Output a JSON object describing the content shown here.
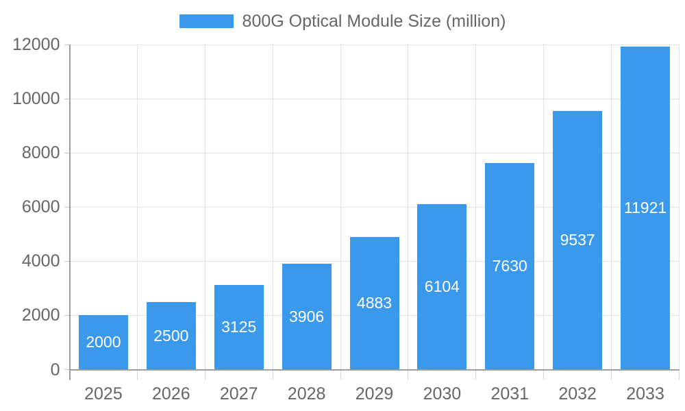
{
  "legend": {
    "label": "800G Optical Module Size (million)"
  },
  "chart_data": {
    "type": "bar",
    "title": "",
    "xlabel": "",
    "ylabel": "",
    "categories": [
      "2025",
      "2026",
      "2027",
      "2028",
      "2029",
      "2030",
      "2031",
      "2032",
      "2033"
    ],
    "values": [
      2000,
      2500,
      3125,
      3906,
      4883,
      6104,
      7630,
      9537,
      11921
    ],
    "series_name": "800G Optical Module Size (million)",
    "ylim": [
      0,
      12000
    ],
    "y_ticks": [
      0,
      2000,
      4000,
      6000,
      8000,
      10000,
      12000
    ],
    "grid": true,
    "legend_position": "top-center",
    "bar_color": "#3B99EB",
    "value_label_color": "#ffffff",
    "axis_label_color": "#666666",
    "gridline_color": "#e2e2e2",
    "axis_line_color": "#9e9e9e"
  }
}
